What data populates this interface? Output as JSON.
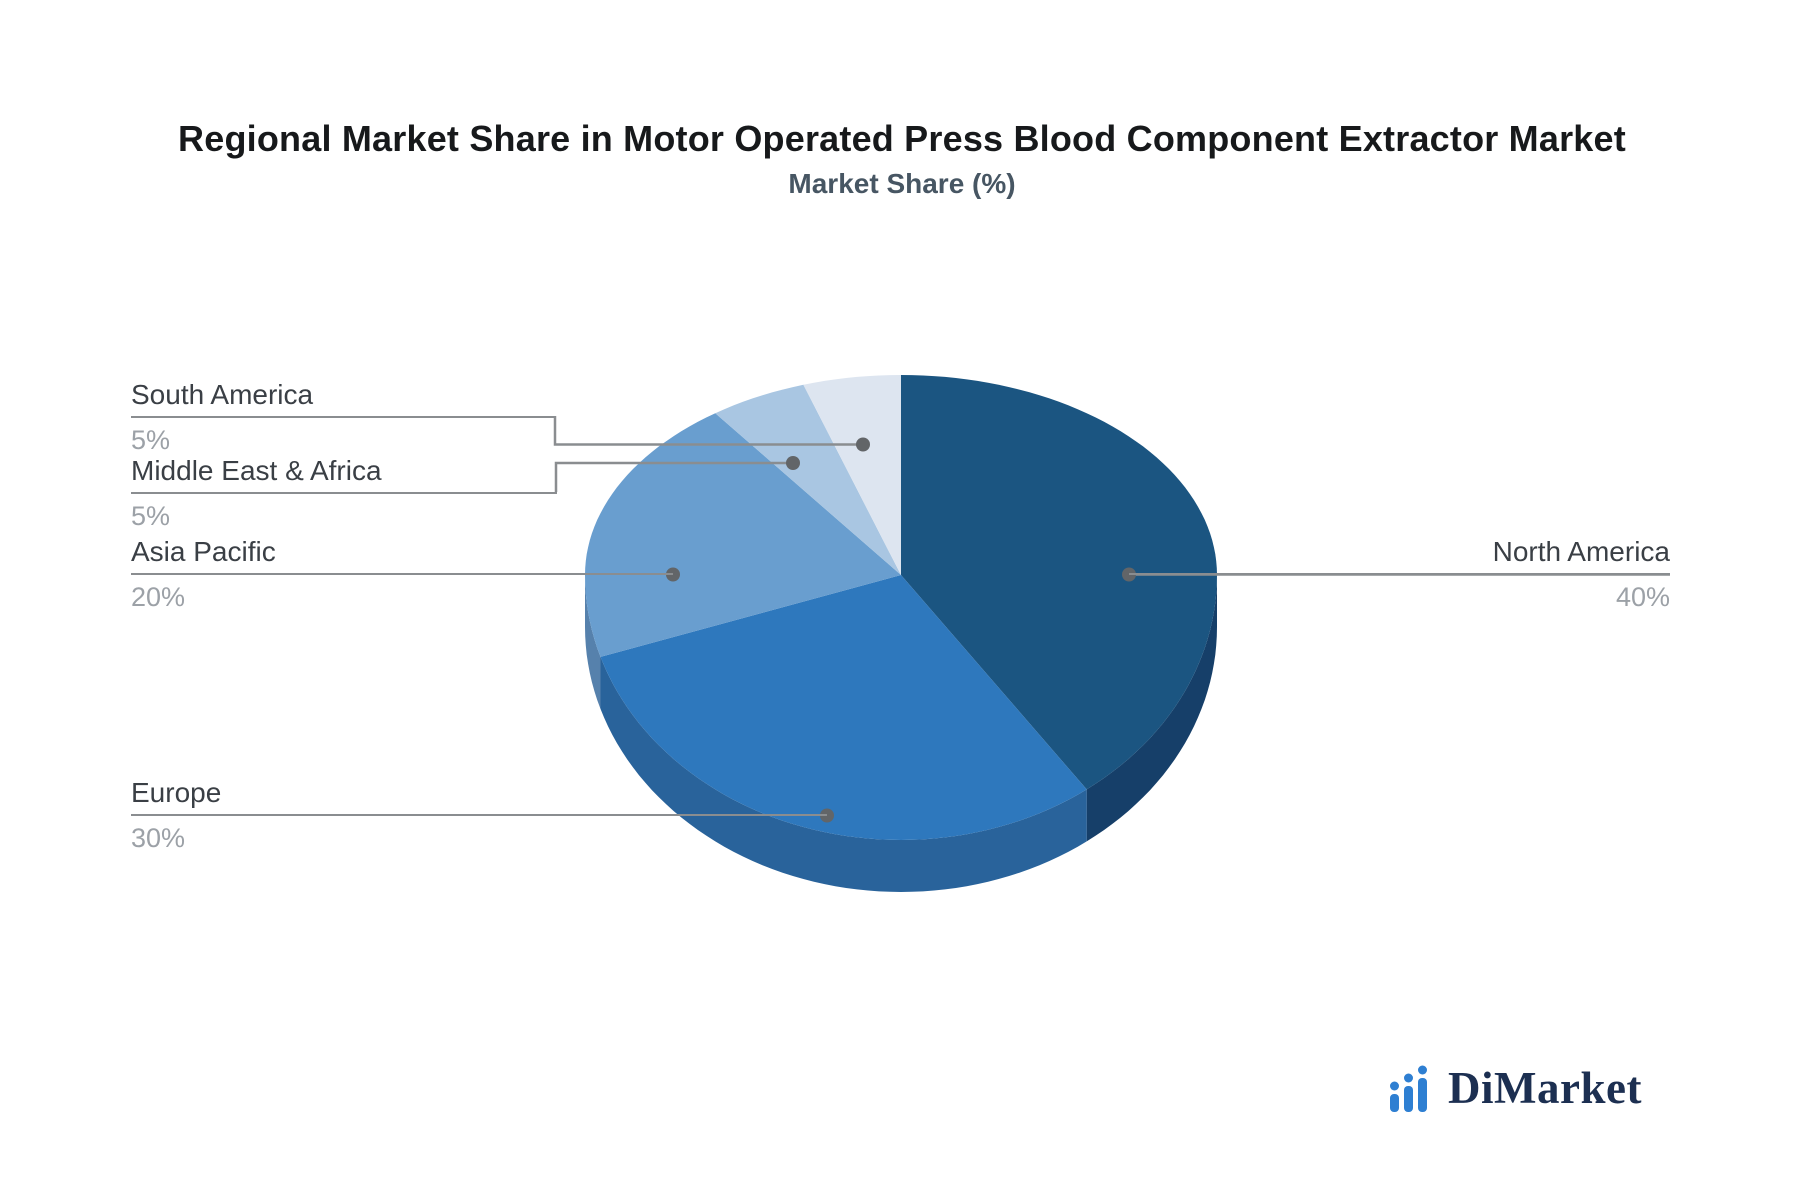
{
  "header": {
    "title": "Regional Market Share in Motor Operated Press Blood Component Extractor Market",
    "subtitle": "Market Share (%)"
  },
  "chart_data": {
    "type": "pie",
    "title": "Regional Market Share in Motor Operated Press Blood Component Extractor Market",
    "subtitle": "Market Share (%)",
    "unit": "%",
    "start_angle": "12-oclock",
    "direction": "clockwise",
    "style": "3d-pie",
    "categories": [
      "North America",
      "Europe",
      "Asia Pacific",
      "Middle East & Africa",
      "South America"
    ],
    "values": [
      40,
      30,
      20,
      5,
      5
    ],
    "slices": [
      {
        "name": "North America",
        "value": 40,
        "label": "40%",
        "color": "#1B5581",
        "rim": "#163F69"
      },
      {
        "name": "Europe",
        "value": 30,
        "label": "30%",
        "color": "#2E78BD",
        "rim": "#29639B"
      },
      {
        "name": "Asia Pacific",
        "value": 20,
        "label": "20%",
        "color": "#699ECF",
        "rim": "#5681AC"
      },
      {
        "name": "Middle East & Africa",
        "value": 5,
        "label": "5%",
        "color": "#A9C6E2",
        "rim": "#8FABC7"
      },
      {
        "name": "South America",
        "value": 5,
        "label": "5%",
        "color": "#DDE5F0",
        "rim": "#BFC9D6"
      }
    ],
    "legend": "none",
    "accent_colors": {
      "label_text": "#3A3F45",
      "value_text": "#9CA1A7",
      "leader_line": "#8A8D90",
      "leader_dot": "#626568"
    }
  },
  "branding": {
    "logo_text": "DiMarket",
    "logo_icon": "bar-chart-icon",
    "logo_text_color": "#1C2F51",
    "logo_icon_color": "#2E7FD2"
  }
}
